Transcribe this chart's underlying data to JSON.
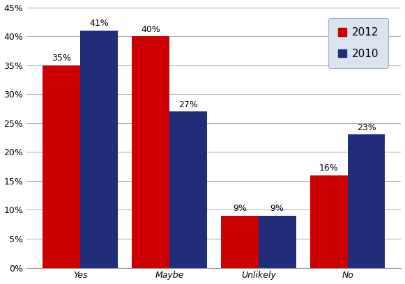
{
  "categories": [
    "Yes",
    "Maybe",
    "Unlikely",
    "No"
  ],
  "values_2012": [
    35,
    40,
    9,
    16
  ],
  "values_2010": [
    41,
    27,
    9,
    23
  ],
  "color_2012": "#CC0000",
  "color_2010": "#1F2D7B",
  "ylabel_ticks": [
    0,
    5,
    10,
    15,
    20,
    25,
    30,
    35,
    40,
    45
  ],
  "ylim": [
    0,
    45
  ],
  "legend_labels": [
    "2012",
    "2010"
  ],
  "legend_facecolor": "#D9E4F0",
  "bar_width": 0.42,
  "label_fontsize": 9,
  "tick_fontsize": 9,
  "background_color": "#FFFFFF",
  "grid_color": "#AAAAAA",
  "figsize": [
    5.81,
    4.08
  ],
  "dpi": 100
}
